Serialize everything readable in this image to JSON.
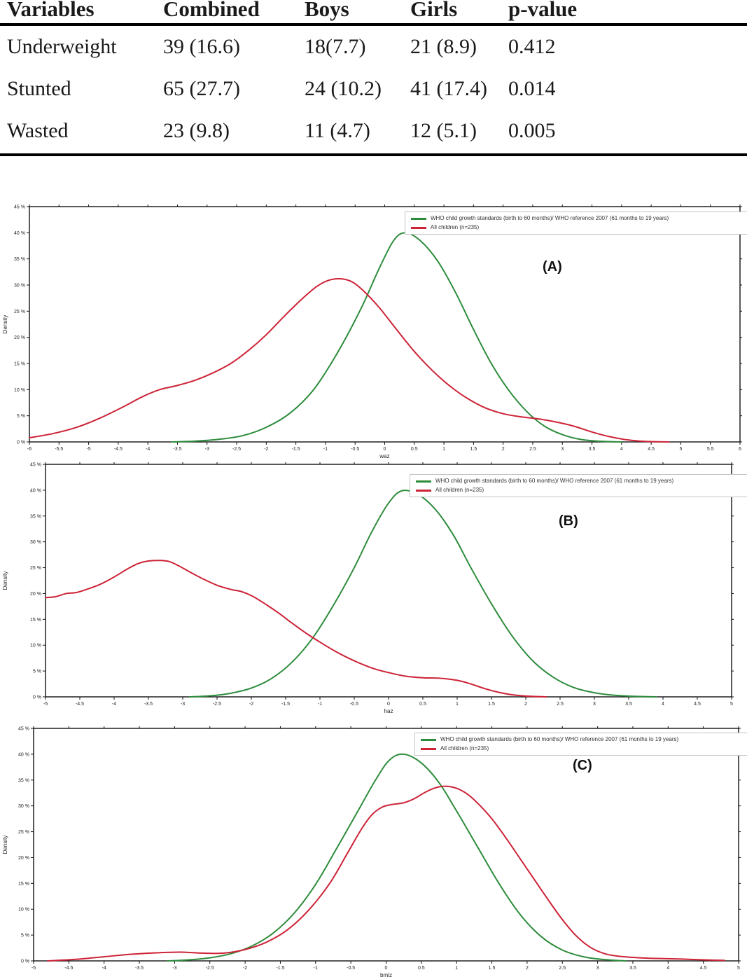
{
  "table": {
    "columns": [
      "Variables",
      "Combined",
      "Boys",
      "Girls",
      "p-value"
    ],
    "rows": [
      {
        "variable": "Underweight",
        "combined": "39 (16.6)",
        "boys": "18(7.7)",
        "girls": "21 (8.9)",
        "p": "0.412"
      },
      {
        "variable": "Stunted",
        "combined": "65 (27.7)",
        "boys": "24 (10.2)",
        "girls": "41 (17.4)",
        "p": "0.014"
      },
      {
        "variable": "Wasted",
        "combined": "23 (9.8)",
        "boys": "11 (4.7)",
        "girls": "12 (5.1)",
        "p": "0.005"
      }
    ]
  },
  "chart_data": [
    {
      "type": "line",
      "panel_label": "(A)",
      "xlabel": "waz",
      "ylabel": "Density",
      "x_min": -6,
      "x_max": 6,
      "x_tick_step": 0.5,
      "y_min": 0,
      "y_max": 45,
      "y_tick_step": 5,
      "y_tick_suffix": " %",
      "grid": false,
      "legend_position": "top-right",
      "legend": [
        {
          "label": "WHO child growth standards (birth to 60 months)/ WHO reference 2007 (61 months to 19 years)",
          "color": "#2d8c3c"
        },
        {
          "label": "All children (n=235)",
          "color": "#cd2337"
        }
      ],
      "series": [
        {
          "name": "WHO child growth standards (birth to 60 months)/ WHO reference 2007 (61 months to 19 years)",
          "color": "#2d8c3c",
          "points": [
            [
              -3.6,
              0
            ],
            [
              -3.2,
              0.15
            ],
            [
              -2.8,
              0.5
            ],
            [
              -2.4,
              1.2
            ],
            [
              -2,
              2.8
            ],
            [
              -1.6,
              5.5
            ],
            [
              -1.2,
              10
            ],
            [
              -0.8,
              17
            ],
            [
              -0.4,
              25.5
            ],
            [
              -0.1,
              33
            ],
            [
              0.15,
              38.5
            ],
            [
              0.35,
              40
            ],
            [
              0.6,
              38.5
            ],
            [
              0.9,
              34.5
            ],
            [
              1.2,
              28.5
            ],
            [
              1.5,
              21.5
            ],
            [
              1.8,
              15
            ],
            [
              2.1,
              9.8
            ],
            [
              2.4,
              5.8
            ],
            [
              2.7,
              3
            ],
            [
              3,
              1.4
            ],
            [
              3.3,
              0.5
            ],
            [
              3.6,
              0.15
            ],
            [
              4,
              0
            ]
          ]
        },
        {
          "name": "All children (n=235)",
          "color": "#cd2337",
          "points": [
            [
              -6,
              0.8
            ],
            [
              -5.6,
              1.6
            ],
            [
              -5.2,
              2.8
            ],
            [
              -4.8,
              4.6
            ],
            [
              -4.4,
              6.8
            ],
            [
              -4.1,
              8.6
            ],
            [
              -3.8,
              10
            ],
            [
              -3.5,
              10.8
            ],
            [
              -3.2,
              11.8
            ],
            [
              -2.9,
              13.2
            ],
            [
              -2.6,
              15
            ],
            [
              -2.3,
              17.5
            ],
            [
              -2,
              20.5
            ],
            [
              -1.7,
              24
            ],
            [
              -1.4,
              27.3
            ],
            [
              -1.15,
              29.7
            ],
            [
              -0.95,
              30.9
            ],
            [
              -0.75,
              31.2
            ],
            [
              -0.55,
              30.6
            ],
            [
              -0.35,
              28.8
            ],
            [
              -0.1,
              25.8
            ],
            [
              0.2,
              21.5
            ],
            [
              0.5,
              17.3
            ],
            [
              0.8,
              13.7
            ],
            [
              1.1,
              10.7
            ],
            [
              1.4,
              8.3
            ],
            [
              1.7,
              6.5
            ],
            [
              2,
              5.4
            ],
            [
              2.3,
              4.8
            ],
            [
              2.6,
              4.4
            ],
            [
              2.9,
              3.8
            ],
            [
              3.2,
              3
            ],
            [
              3.5,
              1.9
            ],
            [
              3.8,
              1
            ],
            [
              4.1,
              0.4
            ],
            [
              4.4,
              0.1
            ],
            [
              4.8,
              0
            ]
          ]
        }
      ]
    },
    {
      "type": "line",
      "panel_label": "(B)",
      "xlabel": "haz",
      "ylabel": "Density",
      "x_min": -5,
      "x_max": 5,
      "x_tick_step": 0.5,
      "y_min": 0,
      "y_max": 45,
      "y_tick_step": 5,
      "y_tick_suffix": " %",
      "grid": false,
      "legend_position": "top-right",
      "legend": [
        {
          "label": "WHO child growth standards (birth to 60 months)/ WHO reference 2007 (61 months to 19 years)",
          "color": "#2d8c3c"
        },
        {
          "label": "All children (n=235)",
          "color": "#cd2337"
        }
      ],
      "series": [
        {
          "name": "WHO child growth standards (birth to 60 months)/ WHO reference 2007 (61 months to 19 years)",
          "color": "#2d8c3c",
          "points": [
            [
              -2.9,
              0
            ],
            [
              -2.6,
              0.2
            ],
            [
              -2.3,
              0.7
            ],
            [
              -2,
              1.7
            ],
            [
              -1.7,
              3.6
            ],
            [
              -1.4,
              6.8
            ],
            [
              -1.1,
              11.5
            ],
            [
              -0.8,
              17.8
            ],
            [
              -0.5,
              25
            ],
            [
              -0.25,
              31.8
            ],
            [
              0,
              37.5
            ],
            [
              0.2,
              39.9
            ],
            [
              0.45,
              39
            ],
            [
              0.7,
              36
            ],
            [
              0.95,
              31.2
            ],
            [
              1.2,
              25
            ],
            [
              1.5,
              18
            ],
            [
              1.8,
              11.8
            ],
            [
              2.1,
              7
            ],
            [
              2.4,
              3.8
            ],
            [
              2.7,
              1.8
            ],
            [
              3,
              0.8
            ],
            [
              3.3,
              0.3
            ],
            [
              3.6,
              0.1
            ],
            [
              3.9,
              0
            ]
          ]
        },
        {
          "name": "All children (n=235)",
          "color": "#cd2337",
          "points": [
            [
              -5,
              19.2
            ],
            [
              -4.85,
              19.4
            ],
            [
              -4.7,
              20
            ],
            [
              -4.55,
              20.2
            ],
            [
              -4.4,
              20.8
            ],
            [
              -4.2,
              21.8
            ],
            [
              -4,
              23.2
            ],
            [
              -3.8,
              24.8
            ],
            [
              -3.65,
              25.8
            ],
            [
              -3.5,
              26.3
            ],
            [
              -3.35,
              26.4
            ],
            [
              -3.2,
              26.2
            ],
            [
              -3.05,
              25.3
            ],
            [
              -2.9,
              24.2
            ],
            [
              -2.7,
              22.8
            ],
            [
              -2.5,
              21.6
            ],
            [
              -2.3,
              20.8
            ],
            [
              -2.15,
              20.4
            ],
            [
              -2,
              19.6
            ],
            [
              -1.8,
              18
            ],
            [
              -1.6,
              16.2
            ],
            [
              -1.4,
              14.2
            ],
            [
              -1.2,
              12.3
            ],
            [
              -1,
              10.6
            ],
            [
              -0.8,
              9
            ],
            [
              -0.6,
              7.6
            ],
            [
              -0.4,
              6.4
            ],
            [
              -0.2,
              5.4
            ],
            [
              0,
              4.7
            ],
            [
              0.25,
              4
            ],
            [
              0.5,
              3.7
            ],
            [
              0.75,
              3.6
            ],
            [
              1,
              3.2
            ],
            [
              1.2,
              2.5
            ],
            [
              1.4,
              1.6
            ],
            [
              1.6,
              0.9
            ],
            [
              1.8,
              0.4
            ],
            [
              2,
              0.15
            ],
            [
              2.3,
              0
            ]
          ]
        }
      ]
    },
    {
      "type": "line",
      "panel_label": "(C)",
      "xlabel": "bmiz",
      "ylabel": "Density",
      "x_min": -5,
      "x_max": 5,
      "x_tick_step": 0.5,
      "y_min": 0,
      "y_max": 45,
      "y_tick_step": 5,
      "y_tick_suffix": " %",
      "grid": false,
      "legend_position": "top-right",
      "legend": [
        {
          "label": "WHO child growth standards (birth to 60 months)/ WHO reference 2007 (61 months to 19 years)",
          "color": "#2d8c3c"
        },
        {
          "label": "All children (n=235)",
          "color": "#cd2337"
        }
      ],
      "series": [
        {
          "name": "WHO child growth standards (birth to 60 months)/ WHO reference 2007 (61 months to 19 years)",
          "color": "#2d8c3c",
          "points": [
            [
              -3.1,
              0
            ],
            [
              -2.8,
              0.2
            ],
            [
              -2.5,
              0.6
            ],
            [
              -2.2,
              1.4
            ],
            [
              -1.9,
              2.9
            ],
            [
              -1.6,
              5.4
            ],
            [
              -1.3,
              9.3
            ],
            [
              -1,
              14.8
            ],
            [
              -0.7,
              21.8
            ],
            [
              -0.4,
              29
            ],
            [
              -0.15,
              35
            ],
            [
              0.05,
              38.9
            ],
            [
              0.25,
              40
            ],
            [
              0.5,
              38.3
            ],
            [
              0.75,
              34.5
            ],
            [
              1,
              29
            ],
            [
              1.3,
              22
            ],
            [
              1.6,
              15
            ],
            [
              1.9,
              9
            ],
            [
              2.2,
              4.7
            ],
            [
              2.5,
              2.1
            ],
            [
              2.8,
              0.8
            ],
            [
              3.1,
              0.25
            ],
            [
              3.4,
              0
            ]
          ]
        },
        {
          "name": "All children (n=235)",
          "color": "#cd2337",
          "points": [
            [
              -4.8,
              0
            ],
            [
              -4.4,
              0.3
            ],
            [
              -4,
              0.8
            ],
            [
              -3.6,
              1.3
            ],
            [
              -3.2,
              1.6
            ],
            [
              -2.9,
              1.7
            ],
            [
              -2.6,
              1.5
            ],
            [
              -2.3,
              1.5
            ],
            [
              -2,
              2.2
            ],
            [
              -1.7,
              3.6
            ],
            [
              -1.4,
              6
            ],
            [
              -1.1,
              9.8
            ],
            [
              -0.8,
              15
            ],
            [
              -0.55,
              20.8
            ],
            [
              -0.35,
              25.5
            ],
            [
              -0.2,
              28.3
            ],
            [
              -0.05,
              29.8
            ],
            [
              0.1,
              30.3
            ],
            [
              0.25,
              30.6
            ],
            [
              0.4,
              31.4
            ],
            [
              0.55,
              32.6
            ],
            [
              0.7,
              33.5
            ],
            [
              0.85,
              33.8
            ],
            [
              1,
              33.4
            ],
            [
              1.15,
              32.3
            ],
            [
              1.3,
              30.5
            ],
            [
              1.5,
              27.5
            ],
            [
              1.7,
              23.8
            ],
            [
              1.9,
              19.8
            ],
            [
              2.1,
              15.8
            ],
            [
              2.3,
              11.8
            ],
            [
              2.5,
              8
            ],
            [
              2.7,
              4.8
            ],
            [
              2.9,
              2.6
            ],
            [
              3.1,
              1.4
            ],
            [
              3.3,
              0.9
            ],
            [
              3.6,
              0.6
            ],
            [
              3.9,
              0.45
            ],
            [
              4.2,
              0.35
            ],
            [
              4.5,
              0.2
            ],
            [
              4.8,
              0.1
            ]
          ]
        }
      ]
    }
  ]
}
